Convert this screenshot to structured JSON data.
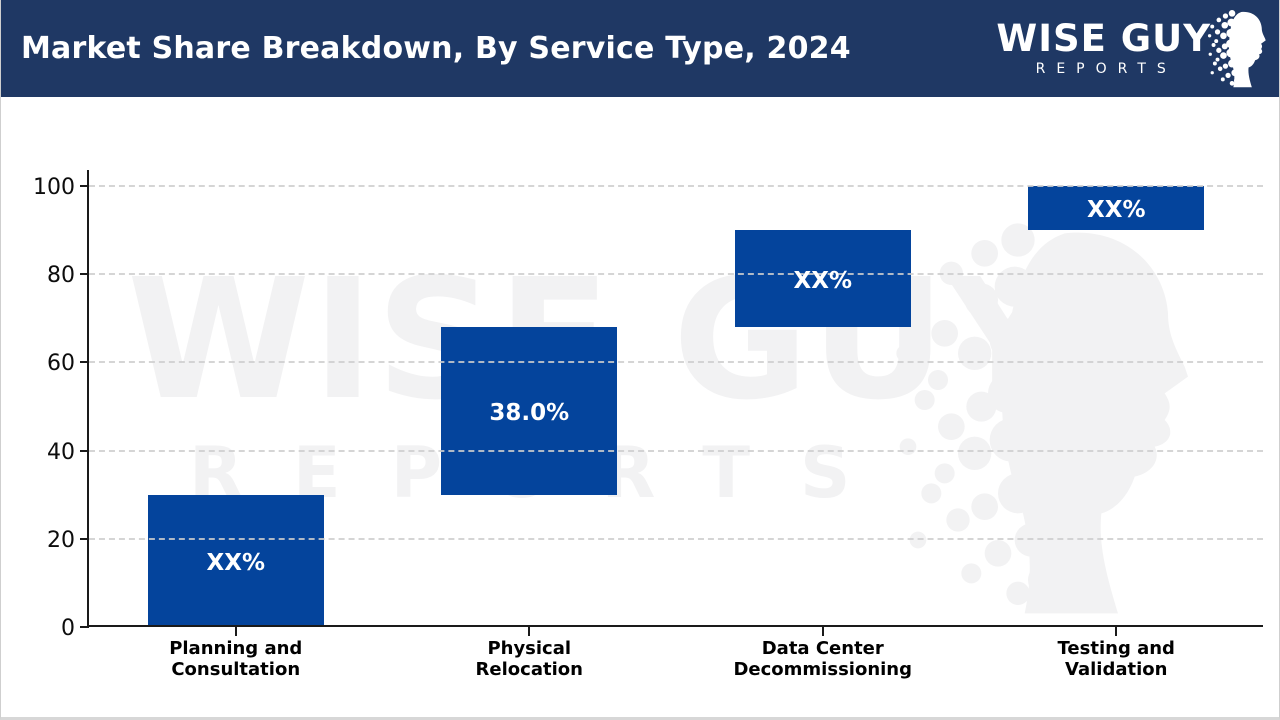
{
  "header": {
    "title": "Market Share Breakdown, By Service Type, 2024",
    "logo": {
      "line1": "WISE GUY",
      "line2": "REPORTS"
    }
  },
  "watermark": {
    "line1": "WISE GUY",
    "line2": "REPORTS"
  },
  "colors": {
    "header_bg": "#1F3864",
    "bar": "#04449C",
    "bar_label": "#FFFFFF",
    "grid": "#CECECE",
    "axis": "#1A1A1A",
    "watermark": "#F2F2F3",
    "page_border": "#CFCFCF"
  },
  "chart_data": {
    "type": "bar",
    "variant": "floating-waterfall",
    "title": "Market Share Breakdown, By Service Type, 2024",
    "xlabel": "",
    "ylabel": "",
    "ylim": [
      0,
      103.6
    ],
    "yticks": [
      0,
      20,
      40,
      60,
      80,
      100
    ],
    "grid": "horizontal-dashed-over-bars",
    "legend": "none",
    "bar_width_fraction": 0.6,
    "categories": [
      "Planning and\nConsultation",
      "Physical\nRelocation",
      "Data Center\nDecommissioning",
      "Testing and\nValidation"
    ],
    "segments": [
      {
        "category": "Planning and Consultation",
        "start": 0,
        "end": 30,
        "label": "XX%"
      },
      {
        "category": "Physical Relocation",
        "start": 30,
        "end": 68,
        "label": "38.0%"
      },
      {
        "category": "Data Center Decommissioning",
        "start": 68,
        "end": 90,
        "label": "XX%"
      },
      {
        "category": "Testing and Validation",
        "start": 90,
        "end": 100,
        "label": "XX%"
      }
    ]
  }
}
